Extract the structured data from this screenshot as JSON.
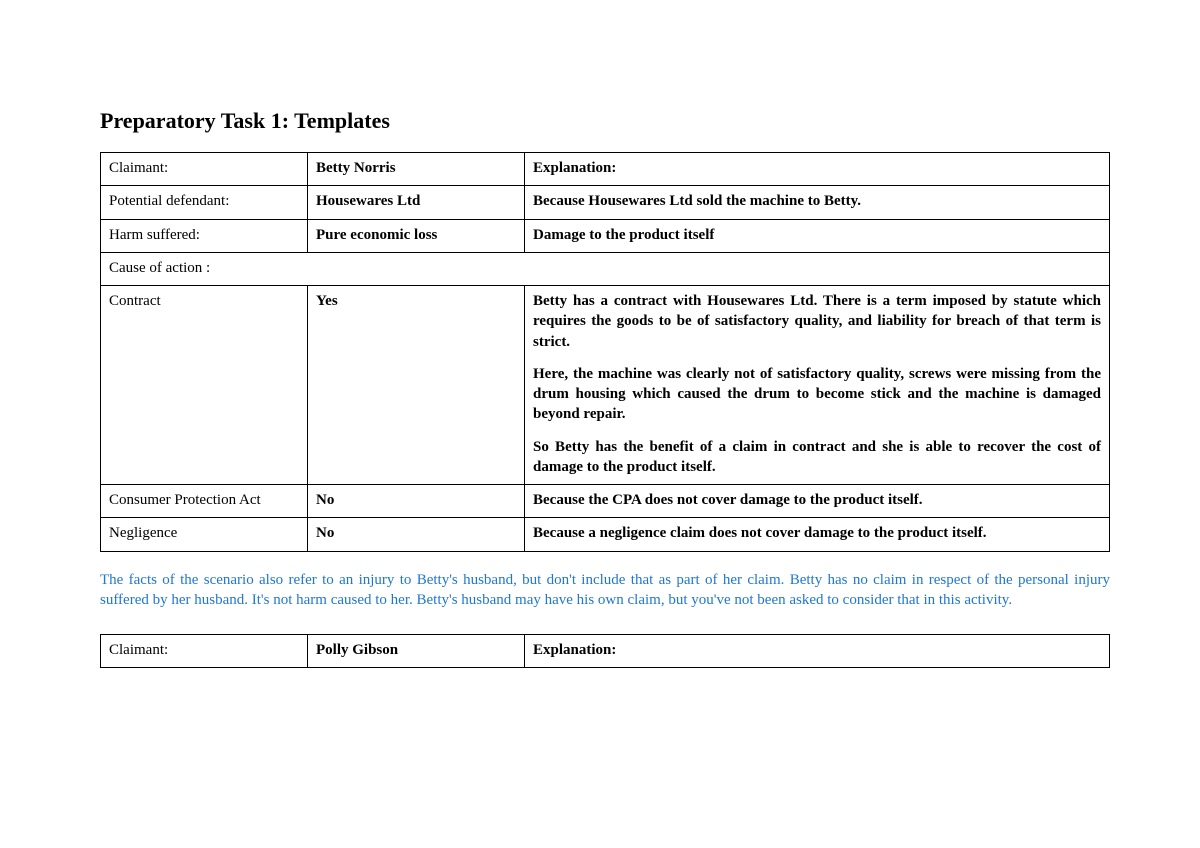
{
  "title": "Preparatory Task 1: Templates",
  "colors": {
    "text_black": "#000000",
    "text_blue": "#1f77d0",
    "border": "#000000",
    "background": "#ffffff"
  },
  "font": {
    "family": "Times New Roman",
    "title_size_pt": 17,
    "body_size_pt": 11
  },
  "table1": {
    "rows": {
      "claimant": {
        "label": "Claimant:",
        "value": "Betty Norris",
        "explanation_header": "Explanation:"
      },
      "defendant": {
        "label": "Potential defendant:",
        "value": "Housewares Ltd",
        "explanation": "Because Housewares Ltd sold the machine to Betty."
      },
      "harm": {
        "label": "Harm suffered:",
        "value": "Pure economic loss",
        "explanation": "Damage to the product itself"
      },
      "cause_header": "Cause of action :",
      "contract": {
        "label": "Contract",
        "value": "Yes",
        "p1": "Betty has a contract with Housewares Ltd. There is a term imposed by statute which requires the goods to be of satisfactory quality, and liability for breach of that term is strict.",
        "p2": "Here, the machine was clearly not of satisfactory quality, screws were missing from the drum housing which caused the drum to become stick and the machine is damaged beyond repair.",
        "p3": "So Betty has the benefit of a claim in contract and she is able to recover the cost of damage to the product itself."
      },
      "cpa": {
        "label": "Consumer Protection Act",
        "value": "No",
        "explanation": "Because the CPA does not cover damage to the product itself."
      },
      "negligence": {
        "label": "Negligence",
        "value": "No",
        "explanation": "Because a negligence claim does not cover damage to the product itself."
      }
    }
  },
  "note": "The facts of the scenario also refer to an injury to Betty's husband, but don't include that as part of her claim. Betty has no claim in respect of the personal injury suffered by her husband. It's not harm caused to her. Betty's husband may have his own claim, but you've not been asked to consider that in this activity.",
  "table2": {
    "rows": {
      "claimant": {
        "label": "Claimant:",
        "value": "Polly Gibson",
        "explanation_header": "Explanation:"
      }
    }
  }
}
